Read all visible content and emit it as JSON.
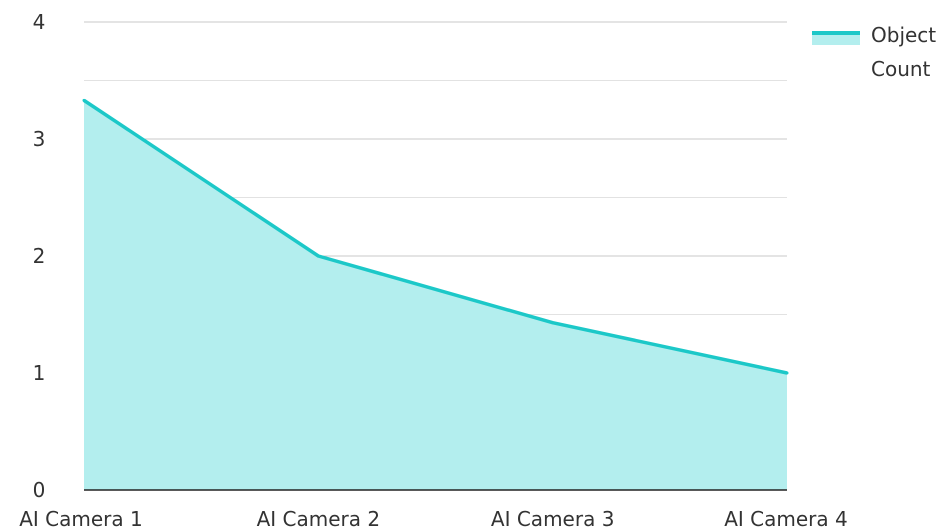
{
  "chart_data": {
    "type": "area",
    "categories": [
      "AI Camera 1",
      "AI Camera 2",
      "AI Camera 3",
      "AI Camera 4"
    ],
    "series": [
      {
        "name": "Object Count",
        "values": [
          3.33,
          2.0,
          1.43,
          1.0
        ],
        "line_color": "#1cc8c8",
        "fill_color": "#b3eeee"
      }
    ],
    "xlabel": "",
    "ylabel": "",
    "ylim": [
      0,
      4
    ],
    "yticks": [
      0,
      1,
      2,
      3,
      4
    ],
    "ytick_labels": [
      "0",
      "1",
      "2",
      "3",
      "4"
    ],
    "minor_gridlines": [
      0.5,
      1.5,
      2.5,
      3.5
    ],
    "grid": true,
    "legend": {
      "position": "top-right",
      "lines": [
        "Object",
        "Count"
      ]
    }
  }
}
